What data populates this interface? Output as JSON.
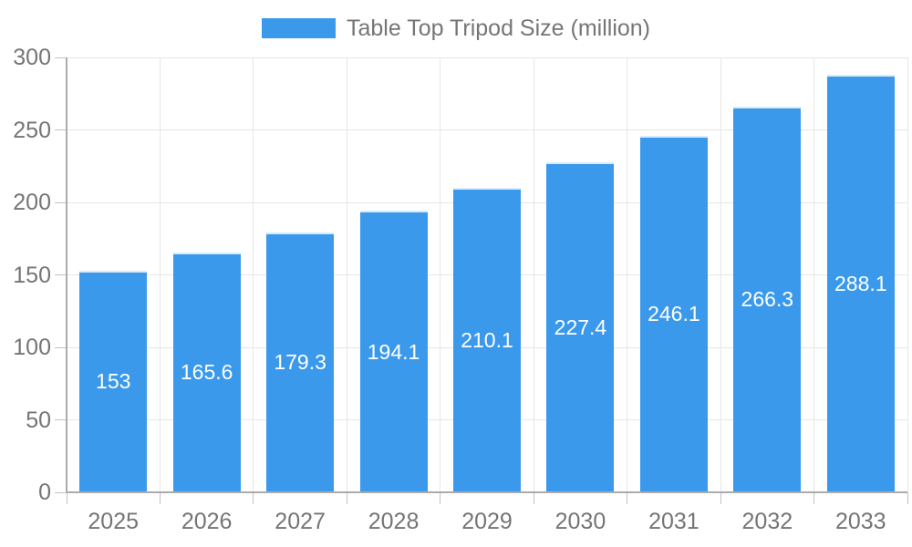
{
  "legend": {
    "label": "Table Top Tripod Size (million)"
  },
  "chart_data": {
    "type": "bar",
    "title": "Table Top Tripod Size (million)",
    "categories": [
      "2025",
      "2026",
      "2027",
      "2028",
      "2029",
      "2030",
      "2031",
      "2032",
      "2033"
    ],
    "series": [
      {
        "name": "Table Top Tripod Size (million)",
        "values": [
          153,
          165.6,
          179.3,
          194.1,
          210.1,
          227.4,
          246.1,
          266.3,
          288.1
        ]
      }
    ],
    "value_labels": [
      "153",
      "165.6",
      "179.3",
      "194.1",
      "210.1",
      "227.4",
      "246.1",
      "266.3",
      "288.1"
    ],
    "xlabel": "",
    "ylabel": "",
    "ylim": [
      0,
      300
    ],
    "yticks": [
      0,
      50,
      100,
      150,
      200,
      250,
      300
    ],
    "grid": true,
    "legend_position": "top",
    "colors": {
      "bar": "#3B99EC",
      "bar_top_edge": "rgba(255,255,255,0.8)",
      "grid": "#E6E6E6",
      "axis": "#ABABAB",
      "tick": "#C2C2C2",
      "text": "#757575",
      "bar_label": "#FFFFFF",
      "background": "#FFFFFF"
    }
  }
}
